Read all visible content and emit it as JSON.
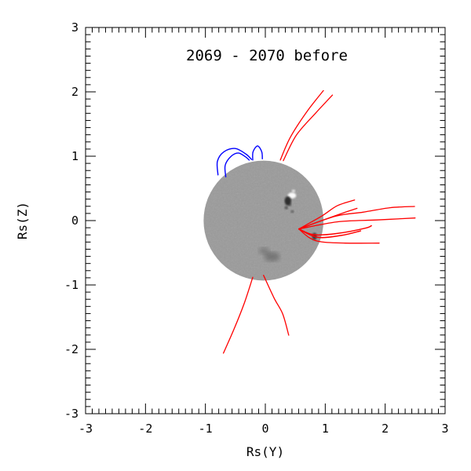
{
  "figure": {
    "background": "#ffffff",
    "frame_color": "#000000"
  },
  "chart_data": {
    "type": "line",
    "title": "2069 - 2070 before",
    "xlabel": "Rs(Y)",
    "ylabel": "Rs(Z)",
    "xlim": [
      -3,
      3
    ],
    "ylim": [
      -3,
      3
    ],
    "x_tick_labels": [
      "-3",
      "-2",
      "-1",
      "0",
      "1",
      "2",
      "3"
    ],
    "y_tick_labels": [
      "-3",
      "-2",
      "-1",
      "0",
      "1",
      "2",
      "3"
    ],
    "x_major_ticks": [
      -3,
      -2,
      -1,
      0,
      1,
      2,
      3
    ],
    "y_major_ticks": [
      -3,
      -2,
      -1,
      0,
      1,
      2,
      3
    ],
    "minor_divisions_per_major": 9,
    "grid": false,
    "legend": "none",
    "units": "solar radii (Rs)",
    "sun_disk": {
      "description": "grayscale solar magnetogram disk",
      "center": [
        -0.03,
        0.0
      ],
      "radius_rs": 1.0,
      "fill": "#9b9b9b"
    },
    "surface_features": [
      {
        "name": "bright-plage",
        "x": 0.445,
        "y": 0.39,
        "rx": 0.07,
        "ry": 0.05,
        "color": "#ffffff",
        "blur": "small",
        "opacity": 0.95
      },
      {
        "name": "bright-plage-dot",
        "x": 0.47,
        "y": 0.46,
        "rx": 0.03,
        "ry": 0.025,
        "color": "#f2f2f2",
        "blur": "small",
        "opacity": 0.8
      },
      {
        "name": "sunspot-dark",
        "x": 0.376,
        "y": 0.305,
        "rx": 0.055,
        "ry": 0.075,
        "color": "#1a1a1a",
        "blur": "small",
        "opacity": 0.85
      },
      {
        "name": "dark-speck-1",
        "x": 0.35,
        "y": 0.2,
        "rx": 0.03,
        "ry": 0.03,
        "color": "#333333",
        "blur": "small",
        "opacity": 0.6
      },
      {
        "name": "dark-speck-2",
        "x": 0.45,
        "y": 0.14,
        "rx": 0.028,
        "ry": 0.025,
        "color": "#3a3a3a",
        "blur": "small",
        "opacity": 0.55
      },
      {
        "name": "dark-speck-3",
        "x": 0.41,
        "y": 0.25,
        "rx": 0.025,
        "ry": 0.03,
        "color": "#2e2e2e",
        "blur": "small",
        "opacity": 0.5
      },
      {
        "name": "diffuse-dark-south-1",
        "x": 0.11,
        "y": -0.56,
        "rx": 0.13,
        "ry": 0.08,
        "color": "#565656",
        "blur": "large",
        "opacity": 0.55
      },
      {
        "name": "diffuse-dark-south-2",
        "x": -0.02,
        "y": -0.47,
        "rx": 0.09,
        "ry": 0.06,
        "color": "#5a5a5a",
        "blur": "large",
        "opacity": 0.45
      },
      {
        "name": "limb-dark-spot-east",
        "x": 0.82,
        "y": -0.245,
        "rx": 0.04,
        "ry": 0.06,
        "color": "#222222",
        "blur": "small",
        "opacity": 0.8
      }
    ],
    "series": [
      {
        "name": "closed-loop-1",
        "field_type": "closed",
        "color": "#0000ff",
        "width": 1.4,
        "points": [
          [
            -0.79,
            0.71
          ],
          [
            -0.8,
            0.92
          ],
          [
            -0.69,
            1.07
          ],
          [
            -0.5,
            1.12
          ],
          [
            -0.32,
            1.03
          ],
          [
            -0.23,
            0.95
          ]
        ]
      },
      {
        "name": "closed-loop-2",
        "field_type": "closed",
        "color": "#0000ff",
        "width": 1.4,
        "points": [
          [
            -0.66,
            0.68
          ],
          [
            -0.67,
            0.86
          ],
          [
            -0.57,
            1.0
          ],
          [
            -0.45,
            1.05
          ],
          [
            -0.33,
            0.99
          ],
          [
            -0.27,
            0.94
          ]
        ]
      },
      {
        "name": "closed-loop-3",
        "field_type": "closed",
        "color": "#0000ff",
        "width": 1.4,
        "points": [
          [
            -0.21,
            0.94
          ],
          [
            -0.205,
            1.07
          ],
          [
            -0.13,
            1.16
          ],
          [
            -0.06,
            1.07
          ],
          [
            -0.05,
            0.96
          ]
        ]
      },
      {
        "name": "open-line-north-1",
        "field_type": "open",
        "color": "#ff0000",
        "width": 1.3,
        "points": [
          [
            0.25,
            0.94
          ],
          [
            0.42,
            1.3
          ],
          [
            0.7,
            1.7
          ],
          [
            0.97,
            2.02
          ]
        ]
      },
      {
        "name": "open-line-north-2",
        "field_type": "open",
        "color": "#ff0000",
        "width": 1.3,
        "points": [
          [
            0.3,
            0.93
          ],
          [
            0.52,
            1.33
          ],
          [
            0.85,
            1.68
          ],
          [
            1.12,
            1.95
          ]
        ]
      },
      {
        "name": "fan-line-east-1",
        "field_type": "open",
        "color": "#ff0000",
        "width": 1.3,
        "points": [
          [
            0.56,
            -0.13
          ],
          [
            0.94,
            0.07
          ],
          [
            1.2,
            0.23
          ],
          [
            1.49,
            0.32
          ]
        ]
      },
      {
        "name": "fan-line-east-2",
        "field_type": "open",
        "color": "#ff0000",
        "width": 1.3,
        "points": [
          [
            0.56,
            -0.13
          ],
          [
            1.0,
            0.02
          ],
          [
            1.3,
            0.12
          ],
          [
            1.53,
            0.19
          ]
        ]
      },
      {
        "name": "fan-line-east-3",
        "field_type": "open",
        "color": "#ff0000",
        "width": 1.3,
        "points": [
          [
            0.56,
            -0.13
          ],
          [
            1.18,
            0.07
          ],
          [
            1.63,
            0.13
          ],
          [
            2.08,
            0.2
          ],
          [
            2.49,
            0.22
          ]
        ]
      },
      {
        "name": "fan-line-east-4",
        "field_type": "open",
        "color": "#ff0000",
        "width": 1.3,
        "points": [
          [
            0.56,
            -0.13
          ],
          [
            1.2,
            -0.02
          ],
          [
            1.86,
            0.01
          ],
          [
            2.5,
            0.04
          ]
        ]
      },
      {
        "name": "fan-line-east-5",
        "field_type": "open",
        "color": "#ff0000",
        "width": 1.5,
        "points": [
          [
            0.56,
            -0.13
          ],
          [
            0.81,
            -0.22
          ],
          [
            1.2,
            -0.2
          ],
          [
            1.66,
            -0.12
          ],
          [
            1.77,
            -0.08
          ]
        ]
      },
      {
        "name": "fan-line-east-6",
        "field_type": "open",
        "color": "#ff0000",
        "width": 1.5,
        "points": [
          [
            0.56,
            -0.13
          ],
          [
            0.87,
            -0.26
          ],
          [
            1.27,
            -0.23
          ],
          [
            1.59,
            -0.16
          ]
        ]
      },
      {
        "name": "fan-line-east-7",
        "field_type": "open",
        "color": "#ff0000",
        "width": 1.3,
        "points": [
          [
            0.56,
            -0.13
          ],
          [
            0.74,
            -0.27
          ],
          [
            0.94,
            -0.33
          ],
          [
            1.33,
            -0.35
          ],
          [
            1.9,
            -0.35
          ]
        ]
      },
      {
        "name": "open-line-south-1",
        "field_type": "open",
        "color": "#ff0000",
        "width": 1.3,
        "points": [
          [
            -0.21,
            -0.88
          ],
          [
            -0.35,
            -1.28
          ],
          [
            -0.52,
            -1.68
          ],
          [
            -0.7,
            -2.06
          ]
        ]
      },
      {
        "name": "open-line-south-2",
        "field_type": "open",
        "color": "#ff0000",
        "width": 1.3,
        "points": [
          [
            -0.03,
            -0.85
          ],
          [
            0.15,
            -1.21
          ],
          [
            0.29,
            -1.45
          ],
          [
            0.39,
            -1.78
          ]
        ]
      }
    ]
  }
}
